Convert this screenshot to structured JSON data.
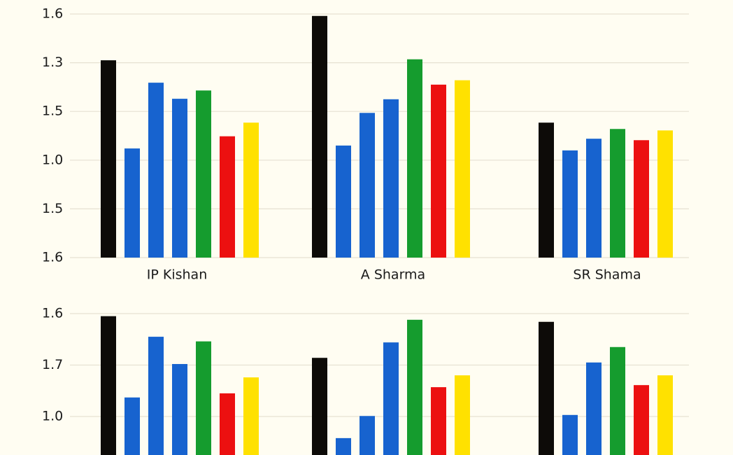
{
  "chart_data": [
    {
      "type": "bar",
      "categories": [
        "IP Kishan",
        "A Sharma",
        "SR Shama"
      ],
      "series": [
        {
          "color": "#0d0b08",
          "values": [
            4.05,
            4.96,
            2.77
          ]
        },
        {
          "color": "#1763cf",
          "values": [
            2.24,
            2.3,
            2.2
          ]
        },
        {
          "color": "#1763cf",
          "values": [
            3.59,
            2.97,
            2.44
          ]
        },
        {
          "color": "#1763cf",
          "values": [
            3.26,
            3.25,
            null
          ]
        },
        {
          "color": "#159c2e",
          "values": [
            3.43,
            4.07,
            2.64
          ]
        },
        {
          "color": "#ec1010",
          "values": [
            2.49,
            3.55,
            2.41
          ]
        },
        {
          "color": "#ffe100",
          "values": [
            2.77,
            3.64,
            2.61
          ]
        }
      ],
      "ylim": [
        0,
        5
      ],
      "yticks": [
        {
          "value": 5,
          "label": "1.6"
        },
        {
          "value": 4,
          "label": "1.3"
        },
        {
          "value": 3,
          "label": "1.5"
        },
        {
          "value": 2,
          "label": "1.0"
        },
        {
          "value": 1,
          "label": "1.5"
        },
        {
          "value": 0,
          "label": "1.6"
        }
      ],
      "grid": true
    },
    {
      "type": "bar",
      "categories": [
        null,
        null,
        null
      ],
      "series": [
        {
          "color": "#0d0b08",
          "values": [
            2.95,
            2.14,
            2.84
          ]
        },
        {
          "color": "#1763cf",
          "values": [
            1.37,
            0.58,
            1.03
          ]
        },
        {
          "color": "#1763cf",
          "values": [
            2.55,
            1.01,
            2.05
          ]
        },
        {
          "color": "#1763cf",
          "values": [
            2.02,
            2.44,
            null
          ]
        },
        {
          "color": "#159c2e",
          "values": [
            2.46,
            2.88,
            2.35
          ]
        },
        {
          "color": "#ec1010",
          "values": [
            1.45,
            1.57,
            1.61
          ]
        },
        {
          "color": "#ffe100",
          "values": [
            1.76,
            1.8,
            1.8
          ]
        }
      ],
      "ylim": [
        0,
        3.2
      ],
      "yticks": [
        {
          "value": 3,
          "label": "1.6"
        },
        {
          "value": 2,
          "label": "1.7"
        },
        {
          "value": 1,
          "label": "1.0"
        }
      ],
      "grid": true
    }
  ]
}
